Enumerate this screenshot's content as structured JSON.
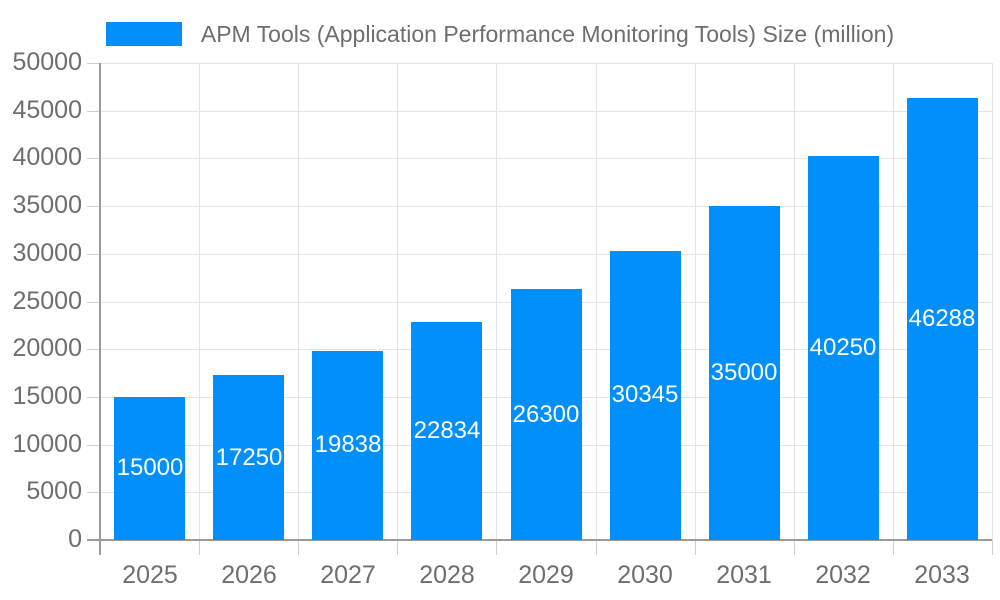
{
  "chart_data": {
    "type": "bar",
    "title": "APM Tools (Application Performance Monitoring Tools) Size (million)",
    "categories": [
      "2025",
      "2026",
      "2027",
      "2028",
      "2029",
      "2030",
      "2031",
      "2032",
      "2033"
    ],
    "values": [
      15000,
      17250,
      19838,
      22834,
      26300,
      30345,
      35000,
      40250,
      46288
    ],
    "xlabel": "",
    "ylabel": "",
    "ylim": [
      0,
      50000
    ],
    "ytick_step": 5000,
    "yticks": [
      0,
      5000,
      10000,
      15000,
      20000,
      25000,
      30000,
      35000,
      40000,
      45000,
      50000
    ],
    "grid": true,
    "legend_position": "top-center",
    "value_labels_position": "inside-center",
    "colors": {
      "bar": "#008FFB",
      "grid": "#e4e4e4",
      "axis": "#9a9a9a",
      "tick": "#cfcfcf",
      "text": "#6e6e6e",
      "value_label": "#ffffff",
      "background": "#ffffff"
    }
  }
}
